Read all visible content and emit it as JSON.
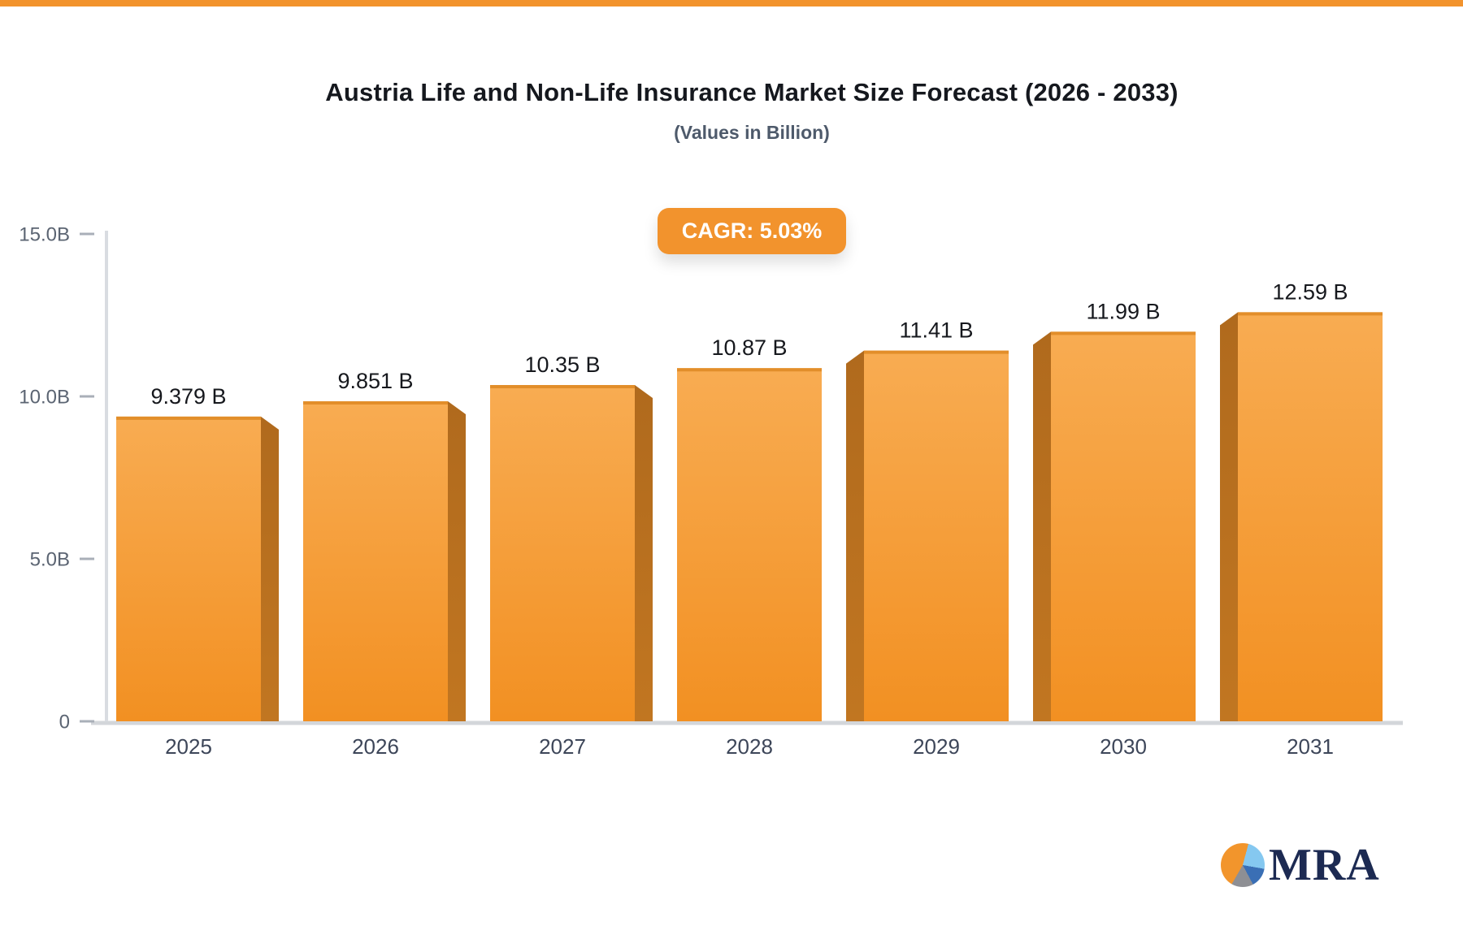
{
  "page": {
    "accent_color": "#f2932d",
    "background": "#ffffff"
  },
  "header": {
    "title": "Austria Life and Non-Life Insurance Market Size Forecast (2026 - 2033)",
    "subtitle": "(Values in Billion)"
  },
  "badge": {
    "label": "CAGR: 5.03%",
    "bg": "#f2932d",
    "text_color": "#ffffff"
  },
  "chart_data": {
    "type": "bar",
    "title": "Austria Life and Non-Life Insurance Market Size Forecast (2026 - 2033)",
    "subtitle": "(Values in Billion)",
    "categories": [
      "2025",
      "2026",
      "2027",
      "2028",
      "2029",
      "2030",
      "2031"
    ],
    "values": [
      9.379,
      9.851,
      10.35,
      10.87,
      11.41,
      11.99,
      12.59
    ],
    "value_labels": [
      "9.379 B",
      "9.851 B",
      "10.35 B",
      "10.87 B",
      "11.41 B",
      "11.99 B",
      "12.59 B"
    ],
    "xlabel": "",
    "ylabel": "",
    "ylim": [
      0,
      15
    ],
    "y_ticks": [
      {
        "value": 15,
        "label": "15.0B"
      },
      {
        "value": 10,
        "label": "10.0B"
      },
      {
        "value": 5,
        "label": "5.0B"
      },
      {
        "value": 0,
        "label": "0"
      }
    ],
    "grid": false,
    "legend": false,
    "colors": {
      "bar_gradient_top": "#f8ac52",
      "bar_gradient_bottom": "#f29022",
      "bar_top_edge": "#e28e2a",
      "bar_side_face": "#b9701f",
      "axis_line": "#d9dce1",
      "baseline": "#d3d6da",
      "tick_dash": "#a9afb8",
      "y_tick_text": "#5b6472",
      "x_tick_text": "#3d4659",
      "value_label_text": "#16181d"
    }
  },
  "logo": {
    "text": "MRA",
    "text_color": "#1c2a52",
    "pie_orange": "#f2952c",
    "pie_light_blue": "#85c8f0",
    "pie_dark_blue": "#3a6fb5",
    "pie_gray": "#8e8f94"
  }
}
